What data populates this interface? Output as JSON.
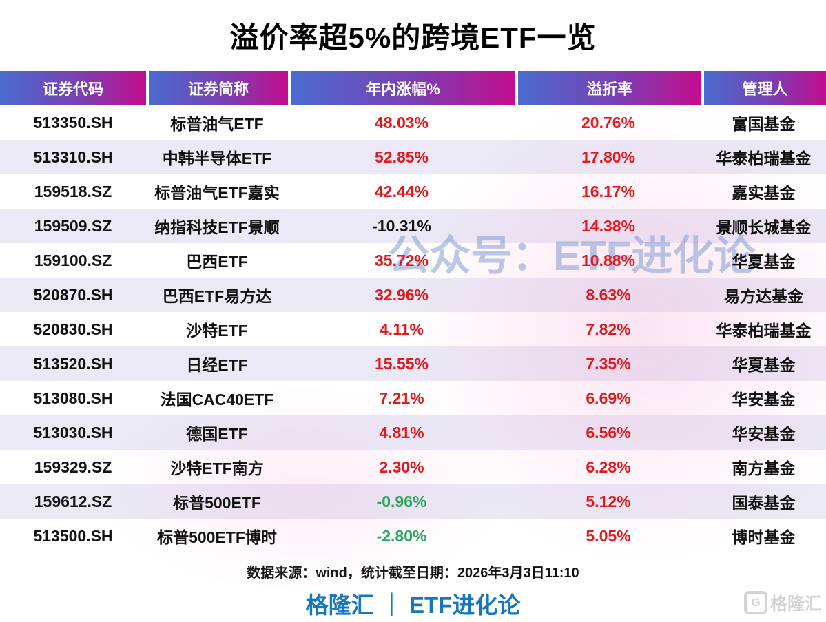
{
  "title": "溢价率超5%的跨境ETF一览",
  "watermark_text": "公众号：ETF进化论",
  "chart_data": {
    "type": "table",
    "title": "溢价率超5%的跨境ETF一览",
    "columns": [
      "证券代码",
      "证券简称",
      "年内涨幅%",
      "溢折率",
      "管理人"
    ],
    "rows": [
      {
        "code": "513350.SH",
        "name": "标普油气ETF",
        "ytd_change": "48.03%",
        "ytd_color": "red",
        "premium_rate": "20.76%",
        "manager": "富国基金"
      },
      {
        "code": "513310.SH",
        "name": "中韩半导体ETF",
        "ytd_change": "52.85%",
        "ytd_color": "red",
        "premium_rate": "17.80%",
        "manager": "华泰柏瑞基金"
      },
      {
        "code": "159518.SZ",
        "name": "标普油气ETF嘉实",
        "ytd_change": "42.44%",
        "ytd_color": "red",
        "premium_rate": "16.17%",
        "manager": "嘉实基金"
      },
      {
        "code": "159509.SZ",
        "name": "纳指科技ETF景顺",
        "ytd_change": "-10.31%",
        "ytd_color": "black",
        "premium_rate": "14.38%",
        "manager": "景顺长城基金"
      },
      {
        "code": "159100.SZ",
        "name": "巴西ETF",
        "ytd_change": "35.72%",
        "ytd_color": "red",
        "premium_rate": "10.88%",
        "manager": "华夏基金"
      },
      {
        "code": "520870.SH",
        "name": "巴西ETF易方达",
        "ytd_change": "32.96%",
        "ytd_color": "red",
        "premium_rate": "8.63%",
        "manager": "易方达基金"
      },
      {
        "code": "520830.SH",
        "name": "沙特ETF",
        "ytd_change": "4.11%",
        "ytd_color": "red",
        "premium_rate": "7.82%",
        "manager": "华泰柏瑞基金"
      },
      {
        "code": "513520.SH",
        "name": "日经ETF",
        "ytd_change": "15.55%",
        "ytd_color": "red",
        "premium_rate": "7.35%",
        "manager": "华夏基金"
      },
      {
        "code": "513080.SH",
        "name": "法国CAC40ETF",
        "ytd_change": "7.21%",
        "ytd_color": "red",
        "premium_rate": "6.69%",
        "manager": "华安基金"
      },
      {
        "code": "513030.SH",
        "name": "德国ETF",
        "ytd_change": "4.81%",
        "ytd_color": "red",
        "premium_rate": "6.56%",
        "manager": "华安基金"
      },
      {
        "code": "159329.SZ",
        "name": "沙特ETF南方",
        "ytd_change": "2.30%",
        "ytd_color": "red",
        "premium_rate": "6.28%",
        "manager": "南方基金"
      },
      {
        "code": "159612.SZ",
        "name": "标普500ETF",
        "ytd_change": "-0.96%",
        "ytd_color": "green",
        "premium_rate": "5.12%",
        "manager": "国泰基金"
      },
      {
        "code": "513500.SH",
        "name": "标普500ETF博时",
        "ytd_change": "-2.80%",
        "ytd_color": "green",
        "premium_rate": "5.05%",
        "manager": "博时基金"
      }
    ]
  },
  "footer": {
    "source_note": "数据来源：wind，统计截至日期：2026年3月3日11:10",
    "brand": "格隆汇 ｜ ETF进化论",
    "corner_logo_text": "格隆汇",
    "corner_logo_glyph": "G"
  },
  "colors": {
    "header_gradient_left": "#4a6cd0",
    "header_gradient_right": "#c30d8e",
    "row_alt_background": "#eae9f5",
    "positive_red": "#e0191f",
    "negative_green": "#27a860",
    "brand_blue": "#1677bd"
  }
}
